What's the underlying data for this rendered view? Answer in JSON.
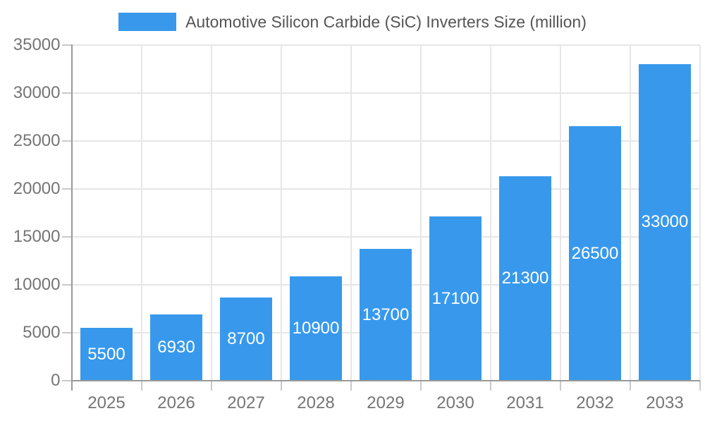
{
  "legend": {
    "label": "Automotive Silicon Carbide (SiC) Inverters Size (million)"
  },
  "colors": {
    "bar": "#3899EC",
    "axis_line": "#999999",
    "gridline": "#E6E6E6",
    "tick_mark": "#C9C9C9",
    "tick_label": "#757575",
    "legend_text": "#555555",
    "value_label": "#FFFFFF",
    "background": "#FFFFFF"
  },
  "chart_data": {
    "type": "bar",
    "title": "Automotive Silicon Carbide (SiC) Inverters Size (million)",
    "series_name": "Automotive Silicon Carbide (SiC) Inverters Size (million)",
    "categories": [
      "2025",
      "2026",
      "2027",
      "2028",
      "2029",
      "2030",
      "2031",
      "2032",
      "2033"
    ],
    "values": [
      5500,
      6930,
      8700,
      10900,
      13700,
      17100,
      21300,
      26500,
      33000
    ],
    "value_labels_shown": true,
    "xlabel": "",
    "ylabel": "",
    "ylim": [
      0,
      35000
    ],
    "ytick_interval": 5000,
    "ytick_labels": [
      "0",
      "5000",
      "10000",
      "15000",
      "20000",
      "25000",
      "30000",
      "35000"
    ],
    "grid": "both",
    "legend_position": "top"
  }
}
